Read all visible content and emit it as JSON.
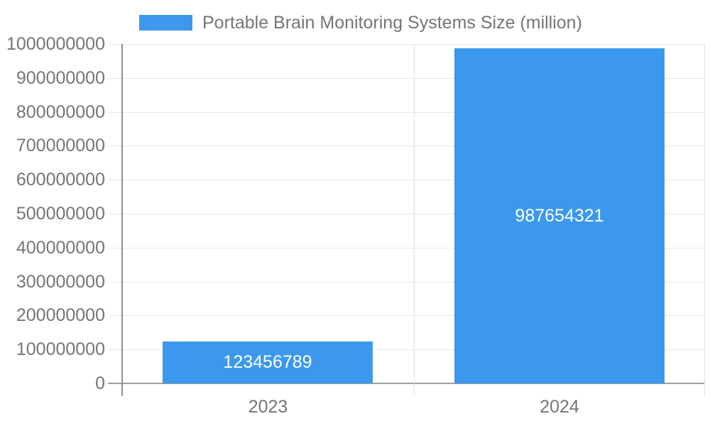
{
  "legend": {
    "label": "Portable Brain Monitoring Systems Size (million)"
  },
  "chart_data": {
    "type": "bar",
    "title": "Portable Brain Monitoring Systems Size (million)",
    "series_name": "Portable Brain Monitoring Systems Size (million)",
    "categories": [
      "2023",
      "2024"
    ],
    "values": [
      123456789,
      987654321
    ],
    "value_labels": [
      "123456789",
      "987654321"
    ],
    "xlabel": "",
    "ylabel": "",
    "ylim": [
      0,
      1000000000
    ],
    "y_tick_interval": 100000000,
    "y_ticks": [
      "0",
      "100000000",
      "200000000",
      "300000000",
      "400000000",
      "500000000",
      "600000000",
      "700000000",
      "800000000",
      "900000000",
      "1000000000"
    ],
    "grid": true,
    "legend_position": "top",
    "colors": {
      "bar": "#3B98ED",
      "bar_value_label": "#ffffff",
      "text": "#757575",
      "gridline": "#e6e6e6",
      "axis_line": "#8f8f8f",
      "baseline": "#9e9e9e",
      "background": "#ffffff"
    }
  }
}
